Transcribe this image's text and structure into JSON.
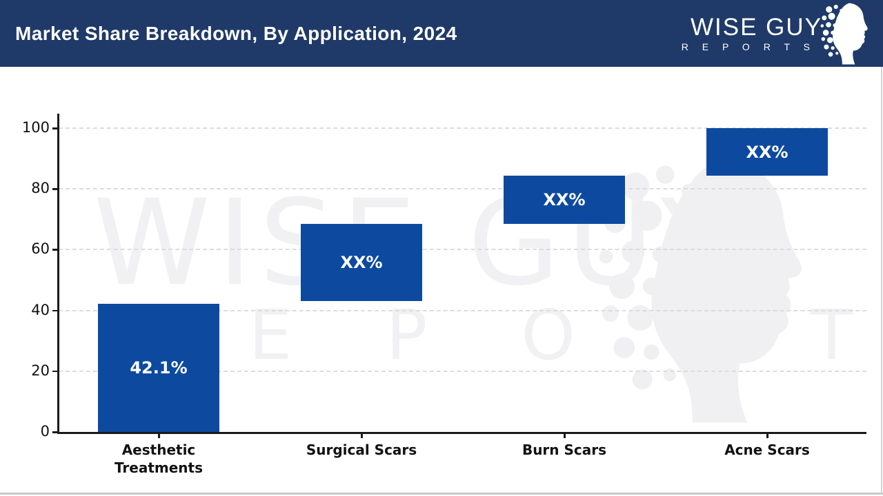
{
  "header": {
    "title": "Market Share Breakdown, By Application, 2024",
    "logo": {
      "wordmark": "WISE GUY",
      "subtitle": "R E P O R T S"
    }
  },
  "watermark": {
    "line1": "WISE GUY",
    "line2": "R E P O R T S"
  },
  "colors": {
    "header_bg": "#1f3a68",
    "bar": "#0d4a9f",
    "bar_label_text": "#ffffff",
    "axis": "#1a1a1a",
    "gridline": "#dcdcdc",
    "watermark": "#f1f1f4",
    "tick_label": "#111111"
  },
  "chart_data": {
    "type": "bar",
    "subtype": "waterfall",
    "title": "Market Share Breakdown, By Application, 2024",
    "categories": [
      "Aesthetic Treatments",
      "Surgical Scars",
      "Burn Scars",
      "Acne Scars"
    ],
    "category_lines": [
      [
        "Aesthetic",
        "Treatments"
      ],
      [
        "Surgical Scars"
      ],
      [
        "Burn Scars"
      ],
      [
        "Acne Scars"
      ]
    ],
    "bars": [
      {
        "category": "Aesthetic Treatments",
        "label": "42.1%",
        "start": 0,
        "end": 42.1
      },
      {
        "category": "Surgical Scars",
        "label": "XX%",
        "start": 43,
        "end": 68.5
      },
      {
        "category": "Burn Scars",
        "label": "XX%",
        "start": 68.5,
        "end": 84.3
      },
      {
        "category": "Acne Scars",
        "label": "XX%",
        "start": 84.3,
        "end": 100
      }
    ],
    "xlabel": "",
    "ylabel": "",
    "yticks": [
      0,
      20,
      40,
      60,
      80,
      100
    ],
    "ylim": [
      0,
      100
    ],
    "grid": "horizontal-dashed",
    "legend": "none"
  }
}
